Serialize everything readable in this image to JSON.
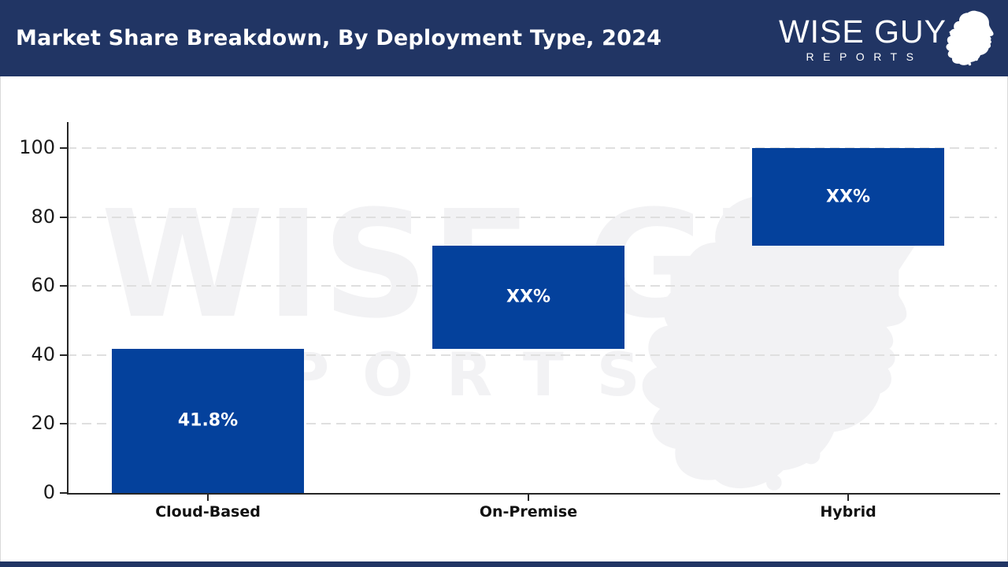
{
  "header": {
    "title": "Market Share Breakdown, By Deployment Type, 2024",
    "bg_color": "#213564",
    "logo": {
      "line1": "WISE GUY",
      "line2": "REPORTS"
    }
  },
  "watermark": {
    "line1": "WISE GUY",
    "line2": "REPORTS",
    "color": "#f2f2f4"
  },
  "footer": {
    "bg_color": "#213564"
  },
  "chart_data": {
    "type": "bar",
    "subtype": "floating-segment-waterfall",
    "title": "Market Share Breakdown, By Deployment Type, 2024",
    "categories": [
      "Cloud-Based",
      "On-Premise",
      "Hybrid"
    ],
    "segments": [
      {
        "category": "Cloud-Based",
        "from": 0,
        "to": 41.8,
        "label": "41.8%"
      },
      {
        "category": "On-Premise",
        "from": 41.8,
        "to": 71.8,
        "label": "XX%"
      },
      {
        "category": "Hybrid",
        "from": 71.8,
        "to": 100,
        "label": "XX%"
      }
    ],
    "yticks": [
      0,
      20,
      40,
      60,
      80,
      100
    ],
    "ylim": [
      0,
      100
    ],
    "xlabel": "",
    "ylabel": "",
    "grid": "horizontal-dashed",
    "legend": "none",
    "bar_color": "#04419C",
    "bar_label_color": "#ffffff",
    "grid_color": "#dfdfdf",
    "axis_color": "#262626"
  }
}
